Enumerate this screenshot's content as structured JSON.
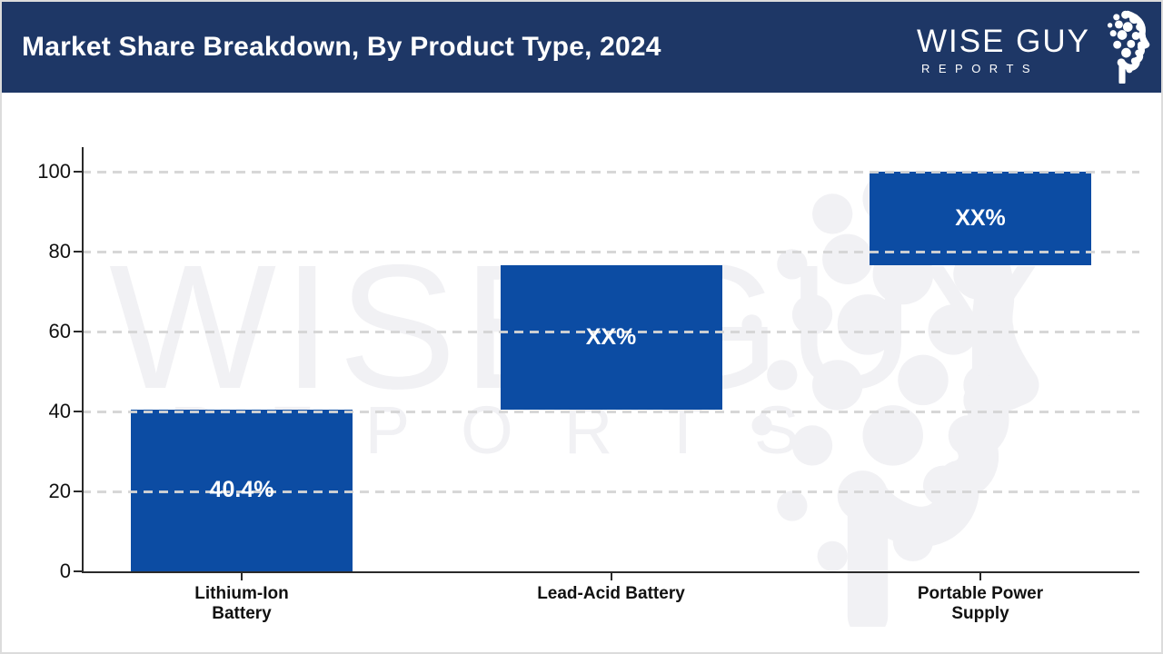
{
  "header": {
    "title": "Market Share Breakdown, By Product Type, 2024",
    "logo": {
      "line1": "WISE GUY",
      "line2": "REPORTS"
    }
  },
  "watermark": {
    "line1": "WISE GUY",
    "line2": "REPORTS"
  },
  "colors": {
    "header_bg": "#1e3766",
    "bar": "#0c4ca3",
    "bar_label": "#ffffff",
    "axis": "#2a2a2a",
    "tick_label": "#111111",
    "gridline": "#d9d9d9",
    "watermark": "#f1f1f4"
  },
  "chart_data": {
    "type": "bar",
    "subtype": "floating-segment-waterfall",
    "title": "Market Share Breakdown, By Product Type, 2024",
    "categories": [
      "Lithium-Ion Battery",
      "Lead-Acid Battery",
      "Portable Power Supply"
    ],
    "category_label_lines": [
      [
        "Lithium-Ion",
        "Battery"
      ],
      [
        "Lead-Acid Battery"
      ],
      [
        "Portable Power",
        "Supply"
      ]
    ],
    "segments": [
      {
        "start": 0,
        "end": 40.4,
        "label": "40.4%"
      },
      {
        "start": 40.4,
        "end": 76.6,
        "label": "XX%"
      },
      {
        "start": 76.6,
        "end": 100,
        "label": "XX%"
      }
    ],
    "xlabel": "",
    "ylabel": "",
    "ylim": [
      0,
      100
    ],
    "yticks": [
      0,
      20,
      40,
      60,
      80,
      100
    ],
    "gridlines": "horizontal-dashed",
    "legend": "none"
  }
}
